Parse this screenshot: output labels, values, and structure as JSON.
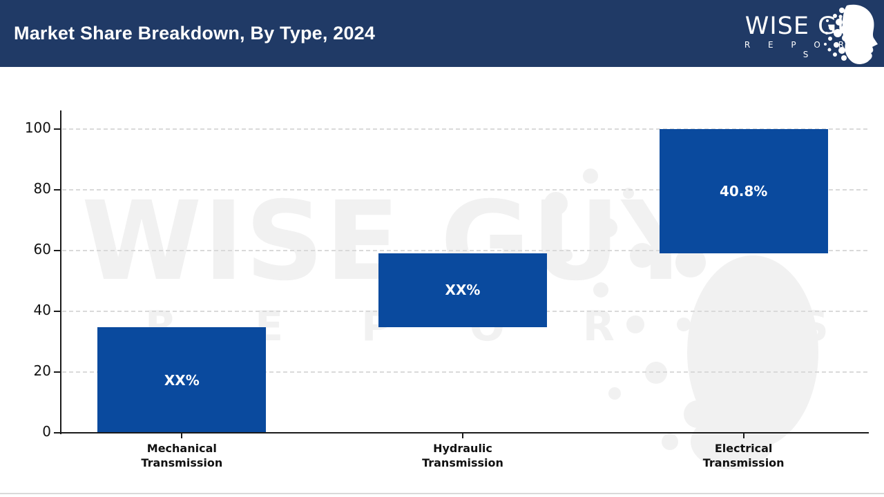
{
  "header": {
    "title": "Market Share Breakdown, By Type, 2024",
    "logo": {
      "name": "WISE GUY REPORTS",
      "line1": "WISE GUY",
      "line2": "R E P O R T S"
    }
  },
  "watermark": {
    "line1": "WISE GUY",
    "line2": "R E P O R T S"
  },
  "chart_data": {
    "type": "bar",
    "subtype": "floating segment bars (stepped market-share breakdown)",
    "title": "Market Share Breakdown, By Type, 2024",
    "categories": [
      "Mechanical Transmission",
      "Hydraulic Transmission",
      "Electrical Transmission"
    ],
    "bars": [
      {
        "category": "Mechanical Transmission",
        "from": 0,
        "to": 34.7,
        "label": "XX%"
      },
      {
        "category": "Hydraulic Transmission",
        "from": 34.7,
        "to": 59.2,
        "label": "XX%"
      },
      {
        "category": "Electrical Transmission",
        "from": 59.2,
        "to": 100,
        "label": "40.8%"
      }
    ],
    "y_ticks": [
      0,
      20,
      40,
      60,
      80,
      100
    ],
    "ylim": [
      0,
      106
    ],
    "xlabel": "",
    "ylabel": "",
    "grid": "horizontal-dashed",
    "legend": "none",
    "bar_color": "#0a4a9e",
    "bar_label_color": "#ffffff"
  },
  "colors": {
    "header_bg": "#203a66",
    "bar": "#0a4a9e",
    "grid": "#d9d9d9",
    "axis": "#1a1a1a",
    "watermark": "#f1f1f1",
    "footer_line": "#d9d9d9"
  }
}
